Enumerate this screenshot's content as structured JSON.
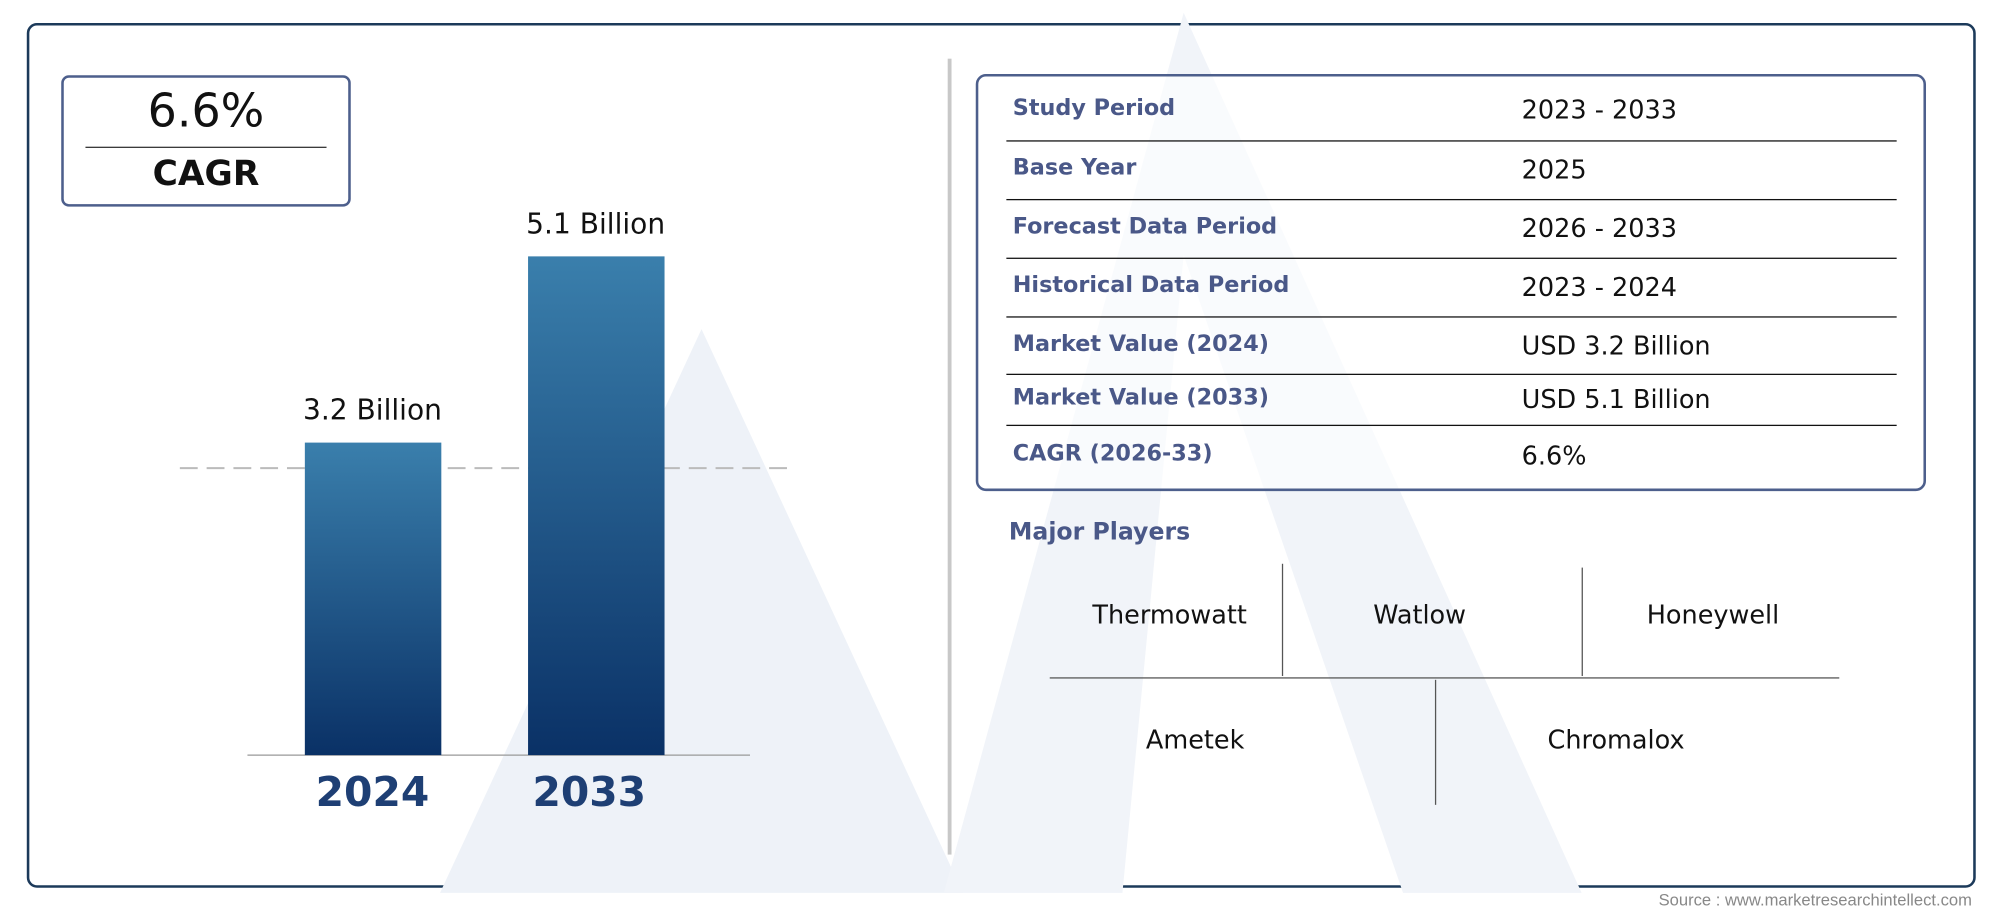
{
  "chart_data": {
    "type": "bar",
    "categories": [
      "2024",
      "2033"
    ],
    "values": [
      3.2,
      5.1
    ],
    "data_labels": [
      "3.2 Billion",
      "5.1 Billion"
    ],
    "unit": "Billion",
    "colors": {
      "bar_top": "#3a7fac",
      "bar_bottom": "#0a3166"
    },
    "reference_line": "dashed line at 2024 value",
    "grid": false
  },
  "cagr": {
    "value": "6.6%",
    "label": "CAGR"
  },
  "table": [
    {
      "key": "Study Period",
      "value": "2023 - 2033"
    },
    {
      "key": "Base Year",
      "value": "2025"
    },
    {
      "key": "Forecast Data Period",
      "value": "2026 - 2033"
    },
    {
      "key": "Historical Data Period",
      "value": "2023 - 2024"
    },
    {
      "key": "Market Value (2024)",
      "value": "USD 3.2 Billion"
    },
    {
      "key": "Market Value (2033)",
      "value": "USD 5.1 Billion"
    },
    {
      "key": "CAGR (2026-33)",
      "value": "6.6%"
    }
  ],
  "major_players": {
    "title": "Major Players",
    "items": [
      "Thermowatt",
      "Watlow",
      "Honeywell",
      "Ametek",
      "Chromalox"
    ]
  },
  "source": "Source : www.marketresearchintellect.com",
  "colors": {
    "border": "#1c3a5a",
    "label": "#4a5888",
    "year": "#1e3f74"
  }
}
